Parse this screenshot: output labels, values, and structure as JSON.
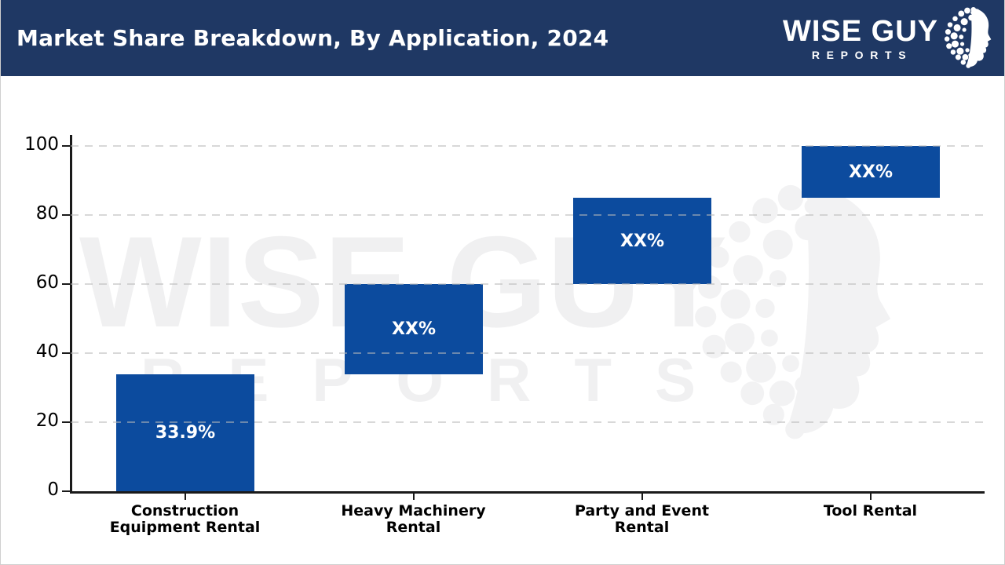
{
  "header": {
    "title": "Market Share Breakdown, By Application, 2024",
    "logo": {
      "line1": "WISE GUY",
      "line2": "REPORTS"
    },
    "bg_color": "#1f3864"
  },
  "watermark": {
    "line1": "WISE GUY",
    "line2": "REPORTS"
  },
  "chart_data": {
    "type": "bar",
    "subtype": "waterfall",
    "title": "Market Share Breakdown, By Application, 2024",
    "categories": [
      "Construction Equipment Rental",
      "Heavy Machinery Rental",
      "Party and Event Rental",
      "Tool Rental"
    ],
    "category_lines": [
      [
        "Construction",
        "Equipment Rental"
      ],
      [
        "Heavy Machinery",
        "Rental"
      ],
      [
        "Party and Event",
        "Rental"
      ],
      [
        "Tool Rental"
      ]
    ],
    "series": [
      {
        "category": "Construction Equipment Rental",
        "start": 0,
        "end": 33.9,
        "label": "33.9%"
      },
      {
        "category": "Heavy Machinery Rental",
        "start": 33.9,
        "end": 60,
        "label": "XX%"
      },
      {
        "category": "Party and Event Rental",
        "start": 60,
        "end": 85,
        "label": "XX%"
      },
      {
        "category": "Tool Rental",
        "start": 85,
        "end": 100,
        "label": "XX%"
      }
    ],
    "ylabel": "",
    "xlabel": "",
    "ylim": [
      0,
      100
    ],
    "yticks": [
      0,
      20,
      40,
      60,
      80,
      100
    ],
    "grid": "dashed horizontal, light gray, drawn over bars",
    "legend": "none",
    "bar_color": "#0c4b9e",
    "bar_label_color": "#ffffff",
    "axis_color": "#1a1a1a"
  }
}
